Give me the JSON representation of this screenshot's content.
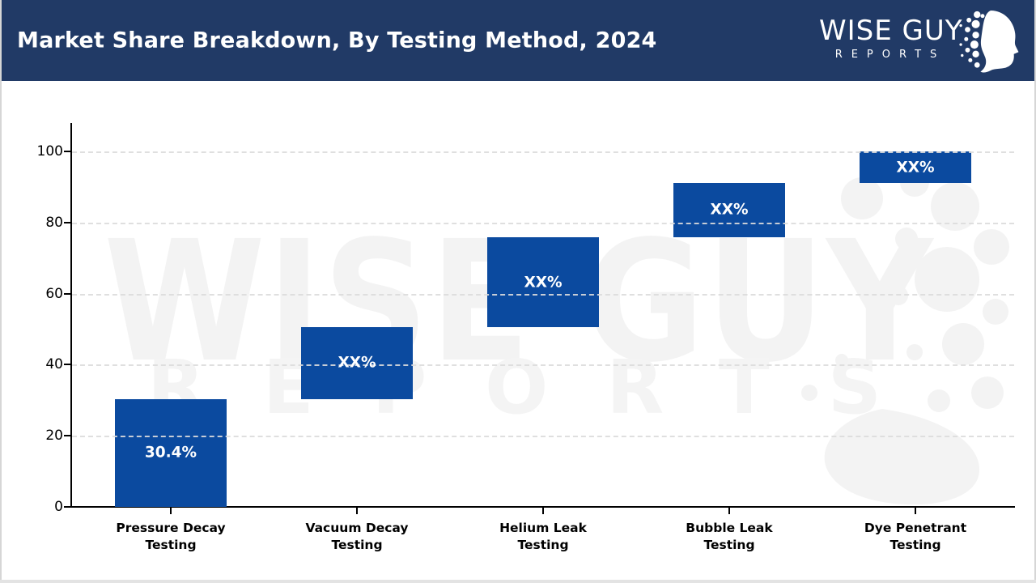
{
  "header": {
    "title": "Market Share Breakdown, By Testing Method, 2024",
    "logo": {
      "line1": "WISE GUY",
      "line2": "REPORTS"
    }
  },
  "watermark": {
    "line1": "WISE GUY",
    "line2": "REPORTS"
  },
  "chart_data": {
    "type": "bar",
    "variant": "waterfall",
    "title": "Market Share Breakdown, By Testing Method, 2024",
    "categories": [
      "Pressure Decay Testing",
      "Vacuum Decay Testing",
      "Helium Leak Testing",
      "Bubble Leak Testing",
      "Dye Penetrant Testing"
    ],
    "category_lines": [
      [
        "Pressure Decay",
        "Testing"
      ],
      [
        "Vacuum Decay",
        "Testing"
      ],
      [
        "Helium Leak",
        "Testing"
      ],
      [
        "Bubble Leak",
        "Testing"
      ],
      [
        "Dye Penetrant",
        "Testing"
      ]
    ],
    "segments": [
      {
        "category": "Pressure Decay Testing",
        "start": 0,
        "end": 30.4,
        "label": "30.4%"
      },
      {
        "category": "Vacuum Decay Testing",
        "start": 30.4,
        "end": 50.5,
        "label": "XX%"
      },
      {
        "category": "Helium Leak Testing",
        "start": 50.5,
        "end": 75.9,
        "label": "XX%"
      },
      {
        "category": "Bubble Leak Testing",
        "start": 75.9,
        "end": 91.1,
        "label": "XX%"
      },
      {
        "category": "Dye Penetrant Testing",
        "start": 91.1,
        "end": 100,
        "label": "XX%"
      }
    ],
    "yticks": [
      0,
      20,
      40,
      60,
      80,
      100
    ],
    "ylim": [
      0,
      108
    ],
    "xlabel": "",
    "ylabel": "",
    "grid": {
      "axis": "y",
      "style": "dashed",
      "on": true
    },
    "legend": null
  },
  "colors": {
    "header_bg": "#213a66",
    "bar": "#0b4a9f",
    "axis": "#000000",
    "grid": "#dcdcdc",
    "watermark": "#f3f3f3",
    "label_text": "#ffffff"
  }
}
